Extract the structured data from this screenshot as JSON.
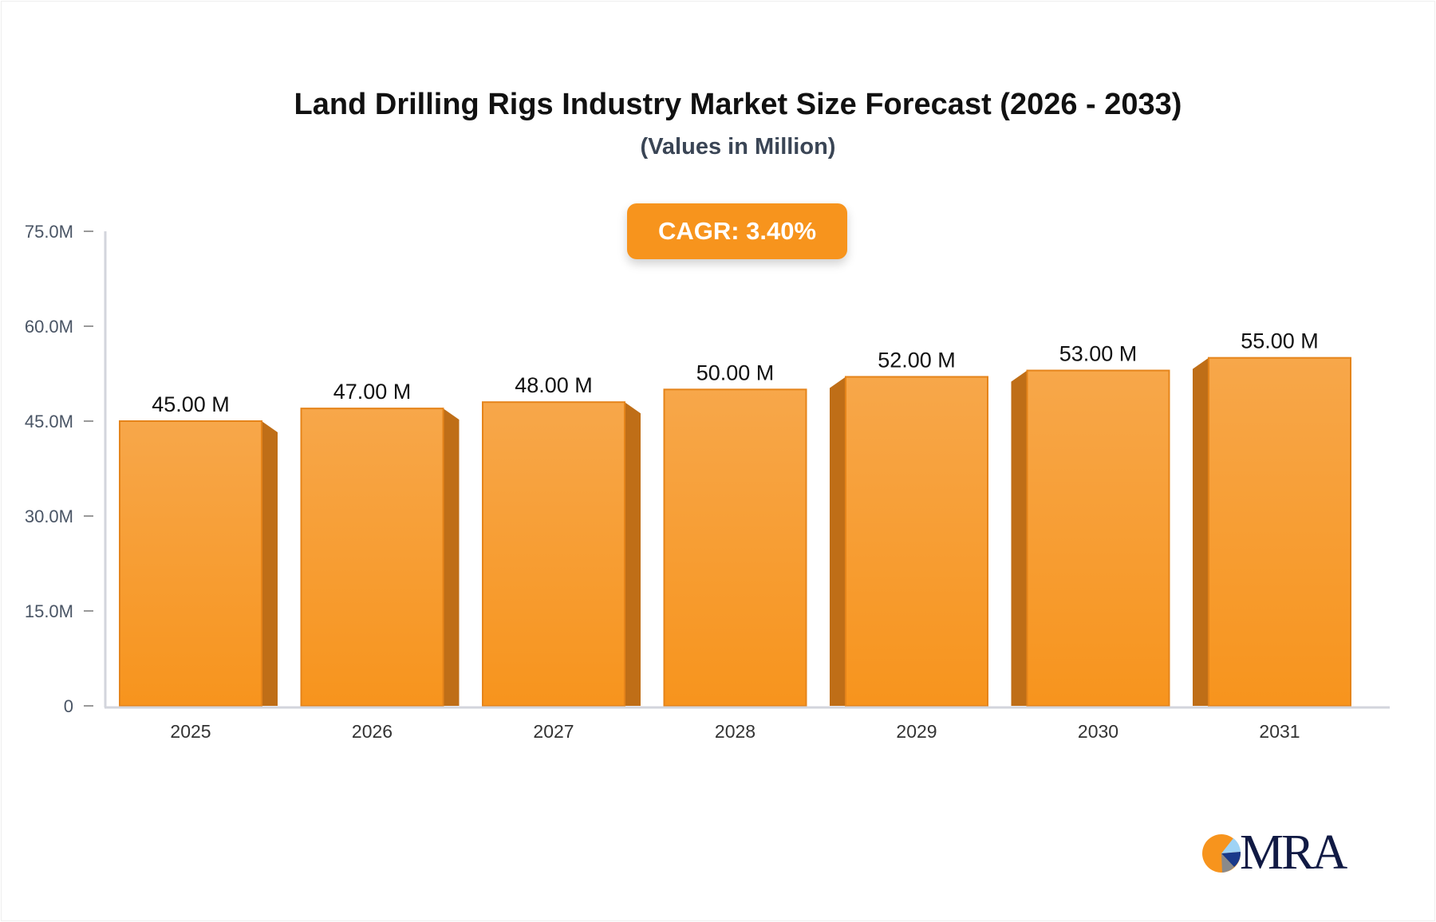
{
  "chart_data": {
    "type": "bar",
    "title": "Land Drilling Rigs Industry Market Size Forecast (2026 - 2033)",
    "subtitle": "(Values in Million)",
    "categories": [
      "2025",
      "2026",
      "2027",
      "2028",
      "2029",
      "2030",
      "2031"
    ],
    "values": [
      45.0,
      47.0,
      48.0,
      50.0,
      52.0,
      53.0,
      55.0
    ],
    "data_labels": [
      "45.00 M",
      "47.00 M",
      "48.00 M",
      "50.00 M",
      "52.00 M",
      "53.00 M",
      "55.00 M"
    ],
    "ylim": [
      0,
      75
    ],
    "yticks": [
      0,
      15,
      30,
      45,
      60,
      75
    ],
    "ytick_labels": [
      "0",
      "15.0M",
      "30.0M",
      "45.0M",
      "60.0M",
      "75.0M"
    ],
    "grid": false,
    "bar_color": "#f7941d",
    "annotation": "CAGR: 3.40%"
  },
  "brand": {
    "logo_text": "MRA"
  }
}
